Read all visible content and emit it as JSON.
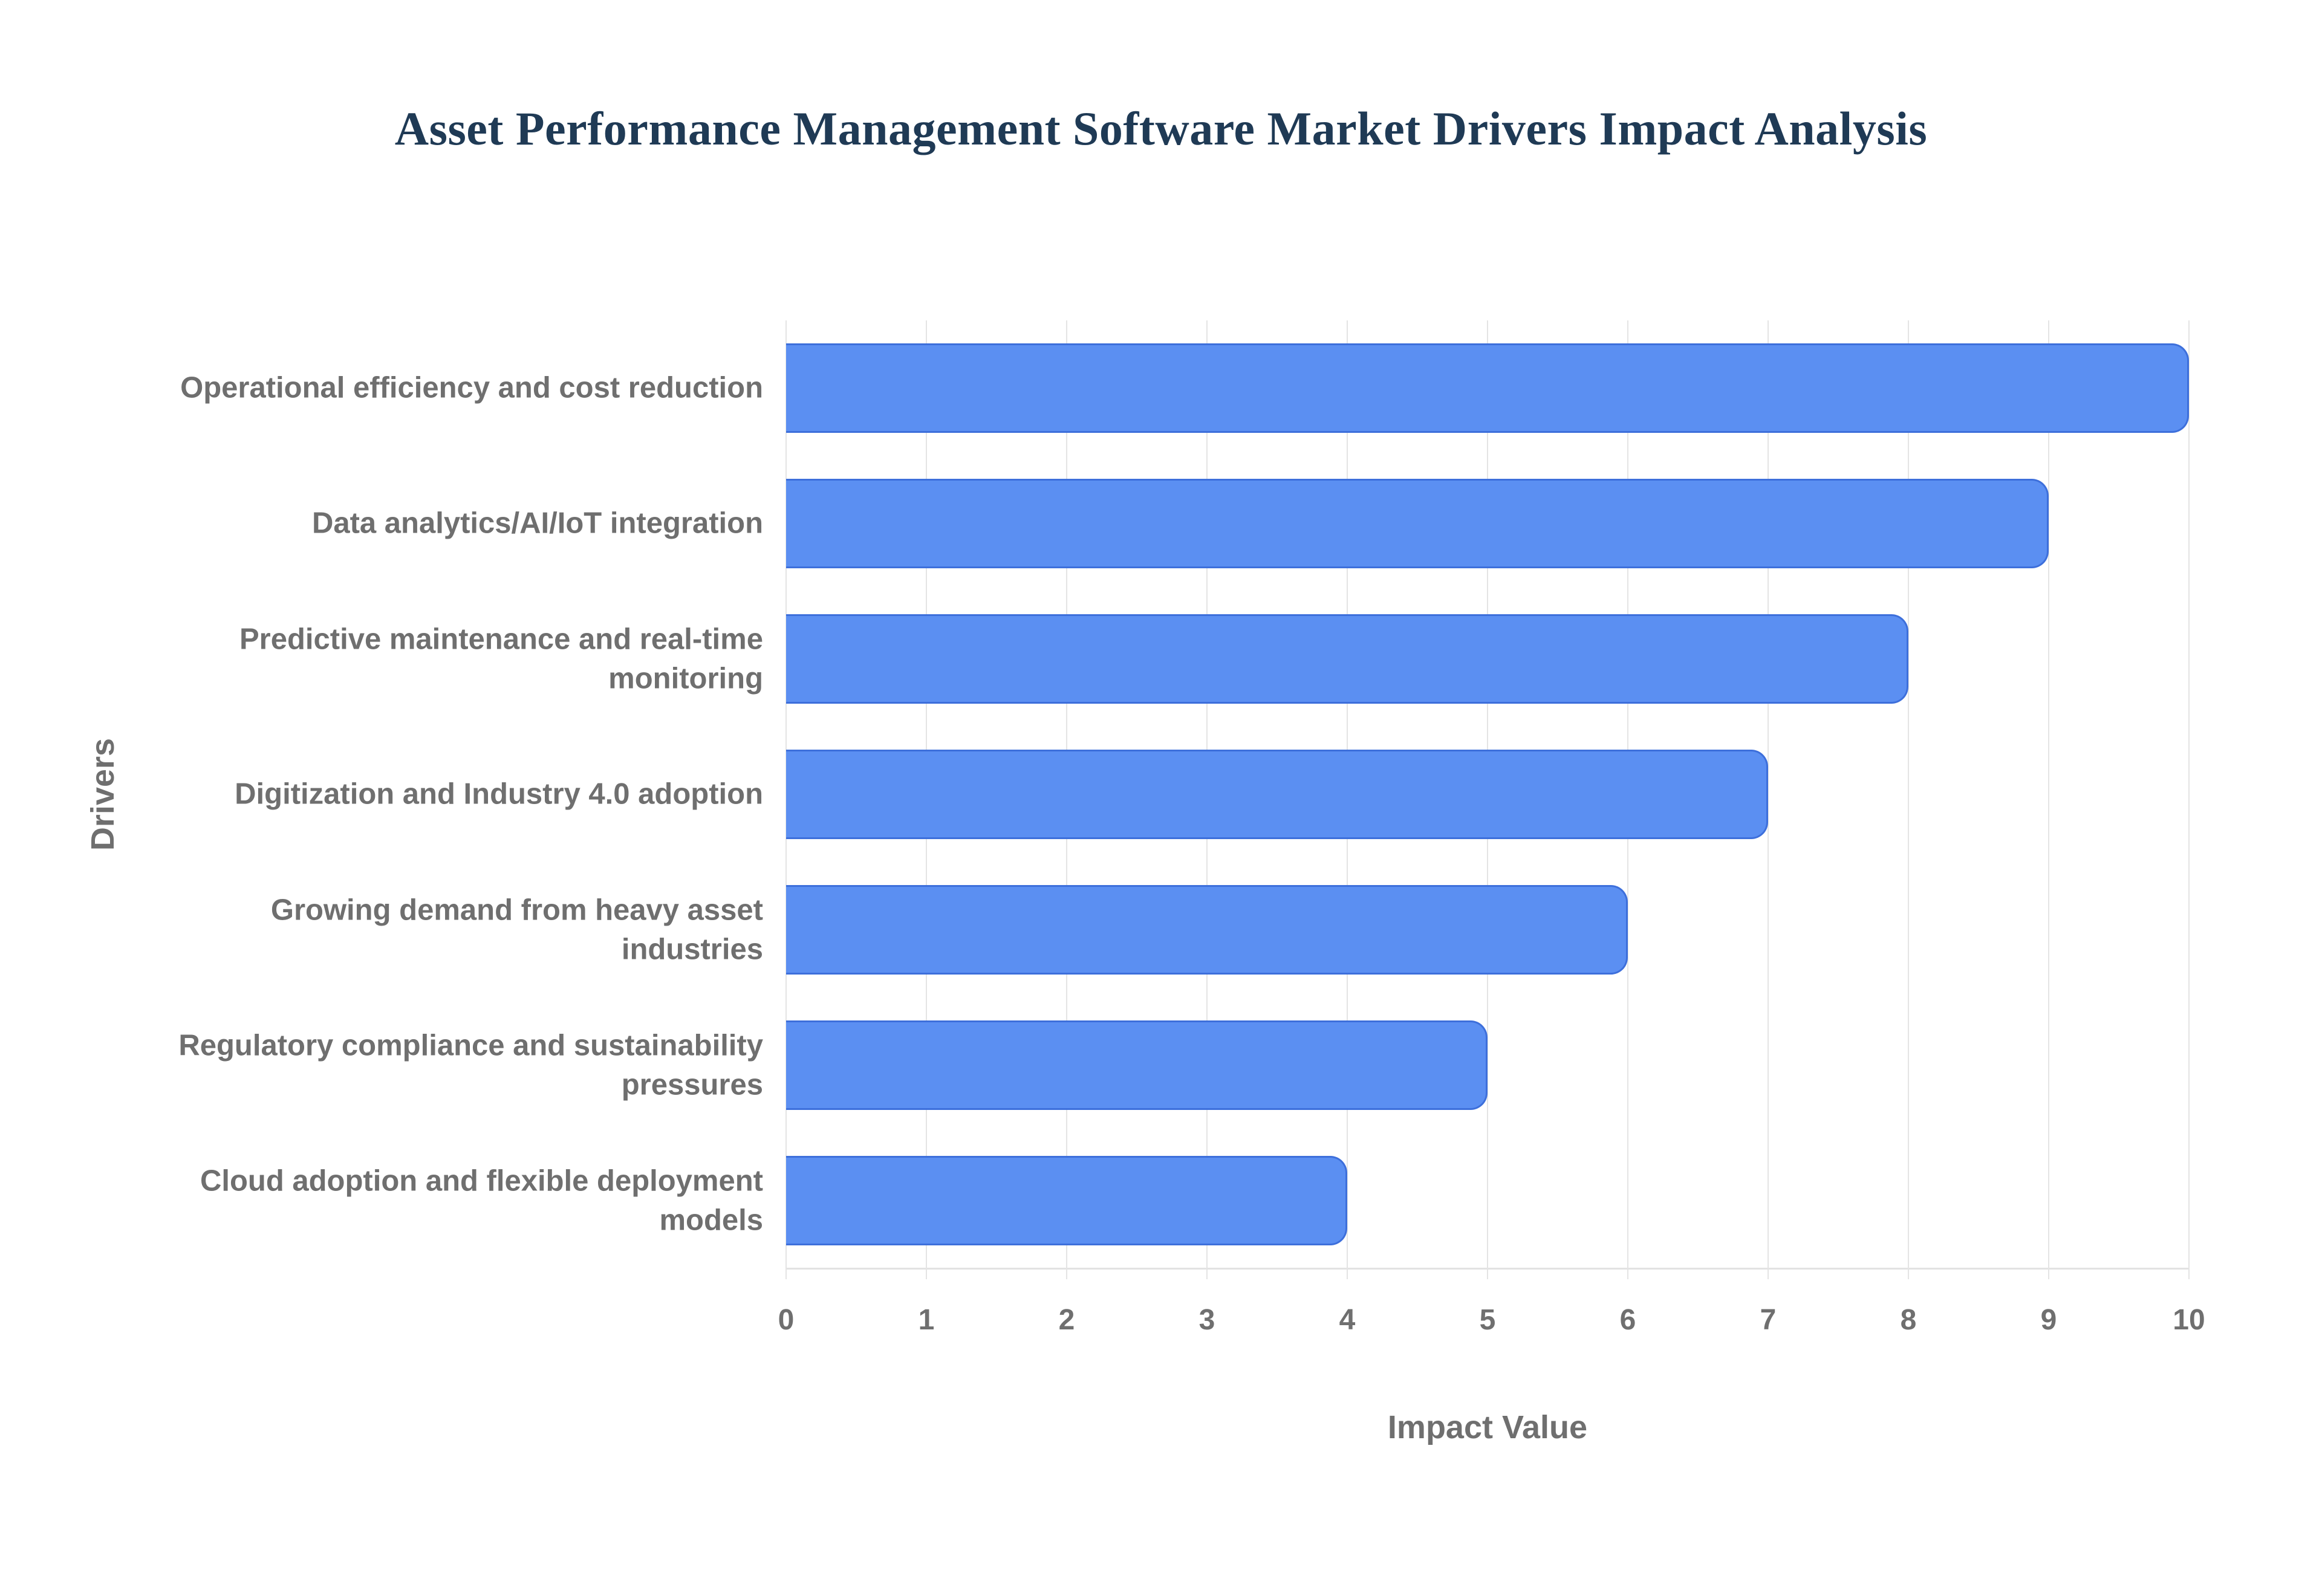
{
  "chart_data": {
    "type": "bar",
    "orientation": "horizontal",
    "title": "Asset Performance Management Software Market Drivers Impact Analysis",
    "categories": [
      "Operational efficiency and cost reduction",
      "Data analytics/AI/IoT integration",
      "Predictive maintenance and real-time monitoring",
      "Digitization and Industry 4.0 adoption",
      "Growing demand from heavy asset industries",
      "Regulatory compliance and sustainability pressures",
      "Cloud adoption and flexible deployment models"
    ],
    "values": [
      10,
      9,
      8,
      7,
      6,
      5,
      4
    ],
    "xlabel": "Impact Value",
    "ylabel": "Drivers",
    "xlim": [
      0,
      10
    ],
    "xticks": [
      0,
      1,
      2,
      3,
      4,
      5,
      6,
      7,
      8,
      9,
      10
    ],
    "grid": "vertical-only",
    "legend": "none",
    "colors": {
      "bar_fill": "#5b8ff2",
      "bar_border": "#3d6fdb",
      "title_text": "#1f3a55",
      "axis_text": "#6f6f6f",
      "gridline": "#e4e4e4",
      "background": "#ffffff"
    }
  }
}
